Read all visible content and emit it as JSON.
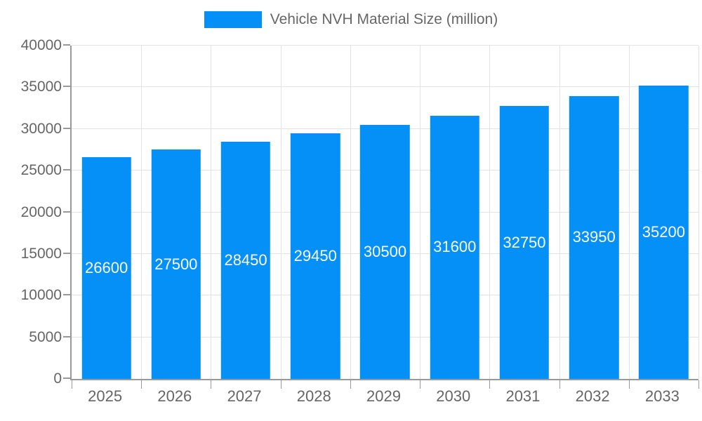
{
  "chart_data": {
    "type": "bar",
    "title": "Vehicle NVH Material Size (million)",
    "legend": {
      "label": "Vehicle NVH Material Size (million)",
      "position": "top-center"
    },
    "categories": [
      "2025",
      "2026",
      "2027",
      "2028",
      "2029",
      "2030",
      "2031",
      "2032",
      "2033"
    ],
    "values": [
      26600,
      27500,
      28450,
      29450,
      30500,
      31600,
      32750,
      33950,
      35200
    ],
    "value_labels": [
      "26600",
      "27500",
      "28450",
      "29450",
      "30500",
      "31600",
      "32750",
      "33950",
      "35200"
    ],
    "xlabel": "",
    "ylabel": "",
    "ylim": [
      0,
      40000
    ],
    "ytick_step": 5000,
    "yticks": [
      0,
      5000,
      10000,
      15000,
      20000,
      25000,
      30000,
      35000,
      40000
    ],
    "grid": true,
    "colors": {
      "bar": "#0590f8",
      "axis_line": "#999999",
      "gridline": "#e3e3e3",
      "axis_text": "#666666",
      "bar_label_text": "#ffffff",
      "background": "#ffffff"
    }
  }
}
